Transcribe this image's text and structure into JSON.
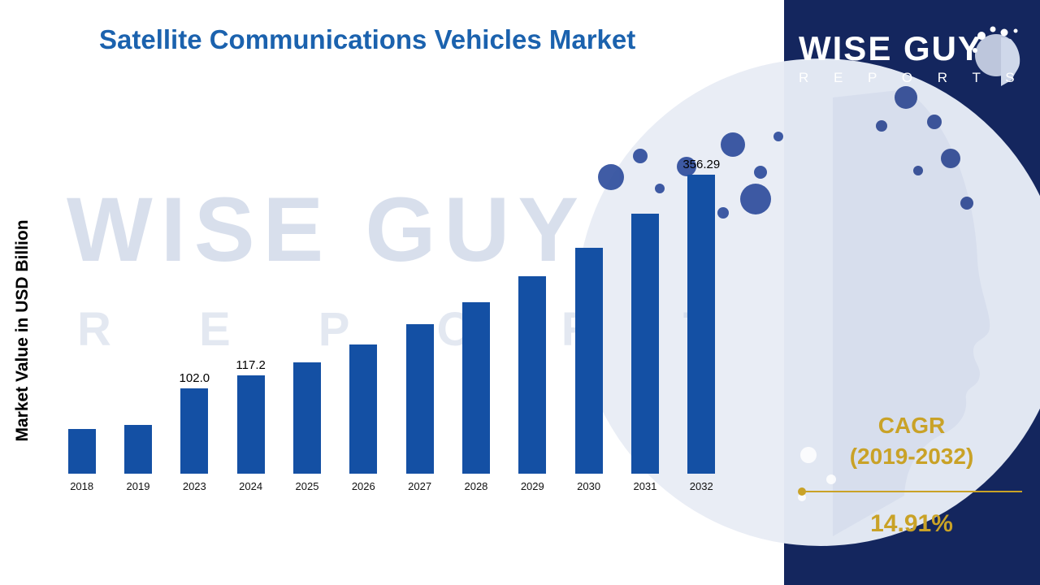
{
  "title": "Satellite Communications Vehicles Market",
  "ylabel": "Market Value in USD Billion",
  "watermark": {
    "line1": "WISE GUY",
    "line2": "R E P O R T S"
  },
  "logo": {
    "line1": "WISE GUY",
    "line2": "R E P O R T S",
    "head_icon": "head-profile-dots-icon"
  },
  "cagr": {
    "label": "CAGR",
    "range": "(2019-2032)",
    "value": "14.91%"
  },
  "colors": {
    "accent_blue": "#1b62ae",
    "bar_blue": "#1450a4",
    "sidebar_navy": "#14265e",
    "gold": "#c9a227",
    "watermark_blue": "#b9c6dd"
  },
  "chart_data": {
    "type": "bar",
    "title": "Satellite Communications Vehicles Market",
    "xlabel": "",
    "ylabel": "Market Value in USD Billion",
    "categories": [
      "2018",
      "2019",
      "2023",
      "2024",
      "2025",
      "2026",
      "2027",
      "2028",
      "2029",
      "2030",
      "2031",
      "2032"
    ],
    "values": [
      53,
      58.5,
      102.0,
      117.2,
      133,
      154,
      178,
      204,
      235,
      269,
      310,
      356.29
    ],
    "value_labels": [
      "",
      "",
      "102.0",
      "117.2",
      "",
      "",
      "",
      "",
      "",
      "",
      "",
      "356.29"
    ],
    "ylim": [
      0,
      380
    ],
    "grid": false,
    "legend": "none",
    "bar_color": "#1450a4"
  }
}
